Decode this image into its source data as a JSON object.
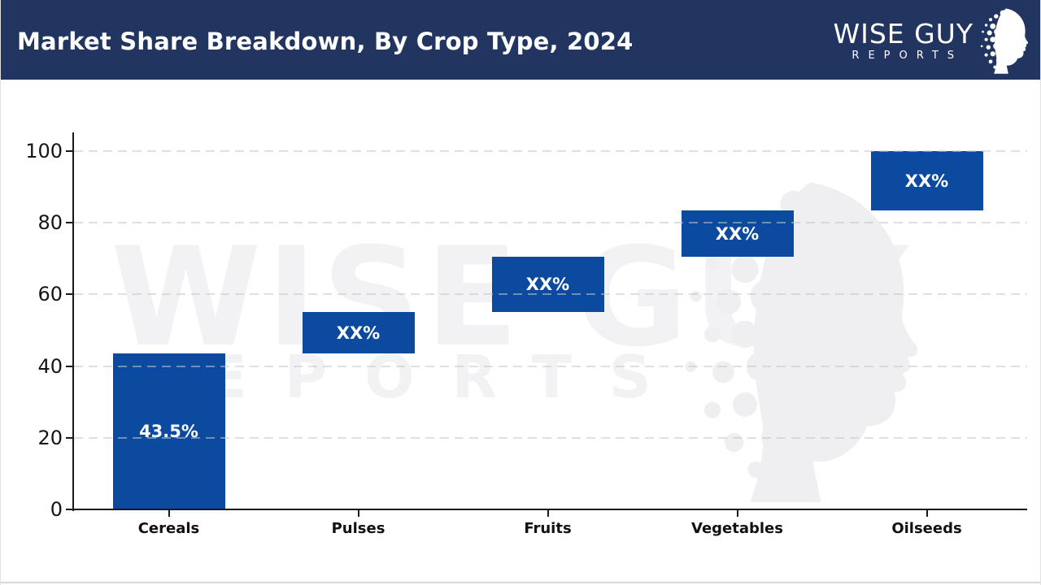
{
  "header": {
    "title": "Market Share Breakdown, By Crop Type, 2024",
    "bg_color": "#213560",
    "logo": {
      "line1": "WISE GUY",
      "line2": "REPORTS"
    }
  },
  "watermark": {
    "line1": "WISE GUY",
    "line2": "REPORTS"
  },
  "chart_data": {
    "type": "bar",
    "subtype": "waterfall",
    "title": "Market Share Breakdown, By Crop Type, 2024",
    "categories": [
      "Cereals",
      "Pulses",
      "Fruits",
      "Vegetables",
      "Oilseeds"
    ],
    "segments": [
      {
        "category": "Cereals",
        "start": 0,
        "end": 43.5,
        "label": "43.5%"
      },
      {
        "category": "Pulses",
        "start": 43.5,
        "end": 55.2,
        "label": "XX%"
      },
      {
        "category": "Fruits",
        "start": 55.2,
        "end": 70.5,
        "label": "XX%"
      },
      {
        "category": "Vegetables",
        "start": 70.5,
        "end": 83.5,
        "label": "XX%"
      },
      {
        "category": "Oilseeds",
        "start": 83.5,
        "end": 100,
        "label": "XX%"
      }
    ],
    "xlabel": "",
    "ylabel": "",
    "ylim": [
      0,
      100
    ],
    "yticks": [
      0,
      20,
      40,
      60,
      80,
      100
    ],
    "grid": "horizontal dashed, drawn above bars",
    "legend": "none",
    "bar_color": "#0b4a9e",
    "bar_label_color": "#ffffff",
    "axis_color": "#1a1a1a",
    "gridline_color": "#d9d9d9"
  }
}
